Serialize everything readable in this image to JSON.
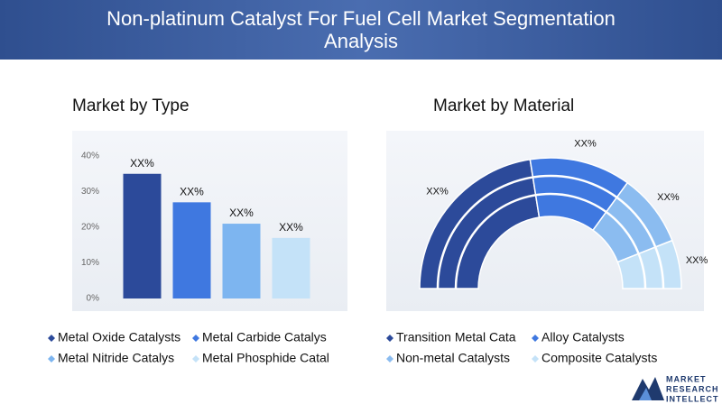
{
  "title": "Non-platinum Catalyst For Fuel Cell Market Segmentation Analysis",
  "chart_data": [
    {
      "type": "bar",
      "title": "Market by Type",
      "categories": [
        "Metal Oxide Catalysts",
        "Metal Carbide Catalys",
        "Metal Nitride Catalys",
        "Metal Phosphide Catal"
      ],
      "values": [
        35,
        27,
        21,
        17
      ],
      "value_labels": [
        "XX%",
        "XX%",
        "XX%",
        "XX%"
      ],
      "colors": [
        "#2c4a9a",
        "#3f78e0",
        "#7db5f0",
        "#c4e2f8"
      ],
      "ylim": [
        0,
        40
      ],
      "yticks": [
        {
          "value": 0,
          "label": "0%"
        },
        {
          "value": 10,
          "label": "10%"
        },
        {
          "value": 20,
          "label": "20%"
        },
        {
          "value": 30,
          "label": "30%"
        },
        {
          "value": 40,
          "label": "40%"
        }
      ],
      "grid": false
    },
    {
      "type": "pie",
      "title": "Market by Material",
      "categories": [
        "Transition Metal Cata",
        "Alloy Catalysts",
        "Non-metal Catalysts",
        "Composite Catalysts"
      ],
      "values": [
        45,
        25,
        18,
        12
      ],
      "value_labels": [
        "XX%",
        "XX%",
        "XX%",
        "XX%"
      ],
      "colors": [
        "#2c4a9a",
        "#3f78e0",
        "#8bbcf0",
        "#c4e2f8"
      ]
    }
  ],
  "logo": [
    "MARKET",
    "RESEARCH",
    "INTELLECT"
  ]
}
